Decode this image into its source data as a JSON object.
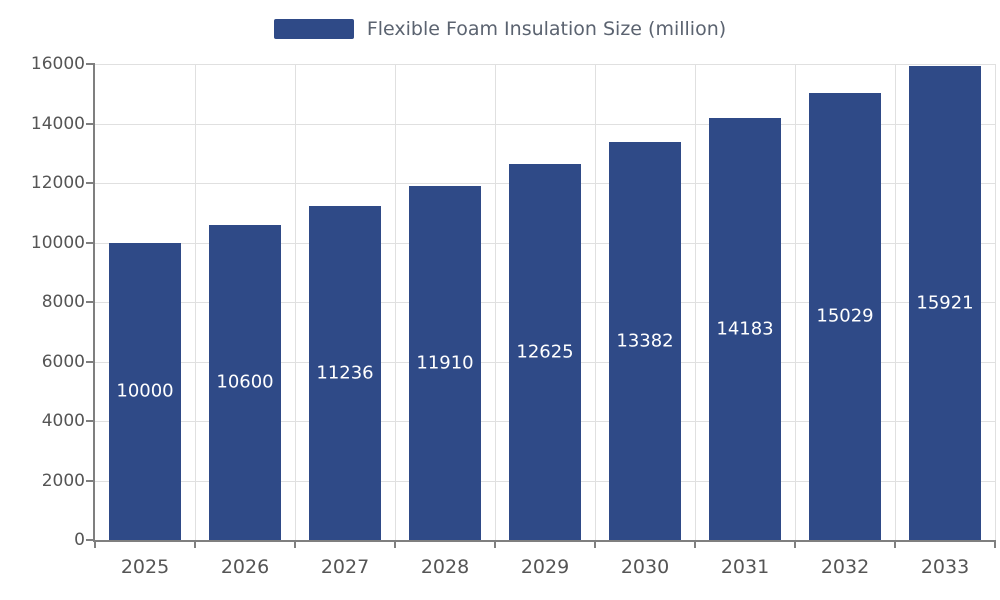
{
  "chart_data": {
    "type": "bar",
    "title": "",
    "legend_label": "Flexible Foam Insulation Size (million)",
    "categories": [
      "2025",
      "2026",
      "2027",
      "2028",
      "2029",
      "2030",
      "2031",
      "2032",
      "2033"
    ],
    "values": [
      10000,
      10600,
      11236,
      11910,
      12625,
      13382,
      14183,
      15029,
      15921
    ],
    "value_labels": [
      "10000",
      "10600",
      "11236",
      "11910",
      "12625",
      "13382",
      "14183",
      "15029",
      "15921"
    ],
    "xlabel": "",
    "ylabel": "",
    "ylim": [
      0,
      16000
    ],
    "yticks": [
      0,
      2000,
      4000,
      6000,
      8000,
      10000,
      12000,
      14000,
      16000
    ],
    "grid": true,
    "legend_position": "top",
    "colors": {
      "bar": "#2F4A87",
      "bar_label_text": "#ffffff",
      "grid": "#e0e0e0",
      "axis": "#7f7f7f",
      "tick_text": "#555555",
      "legend_text": "#5b6370"
    }
  }
}
